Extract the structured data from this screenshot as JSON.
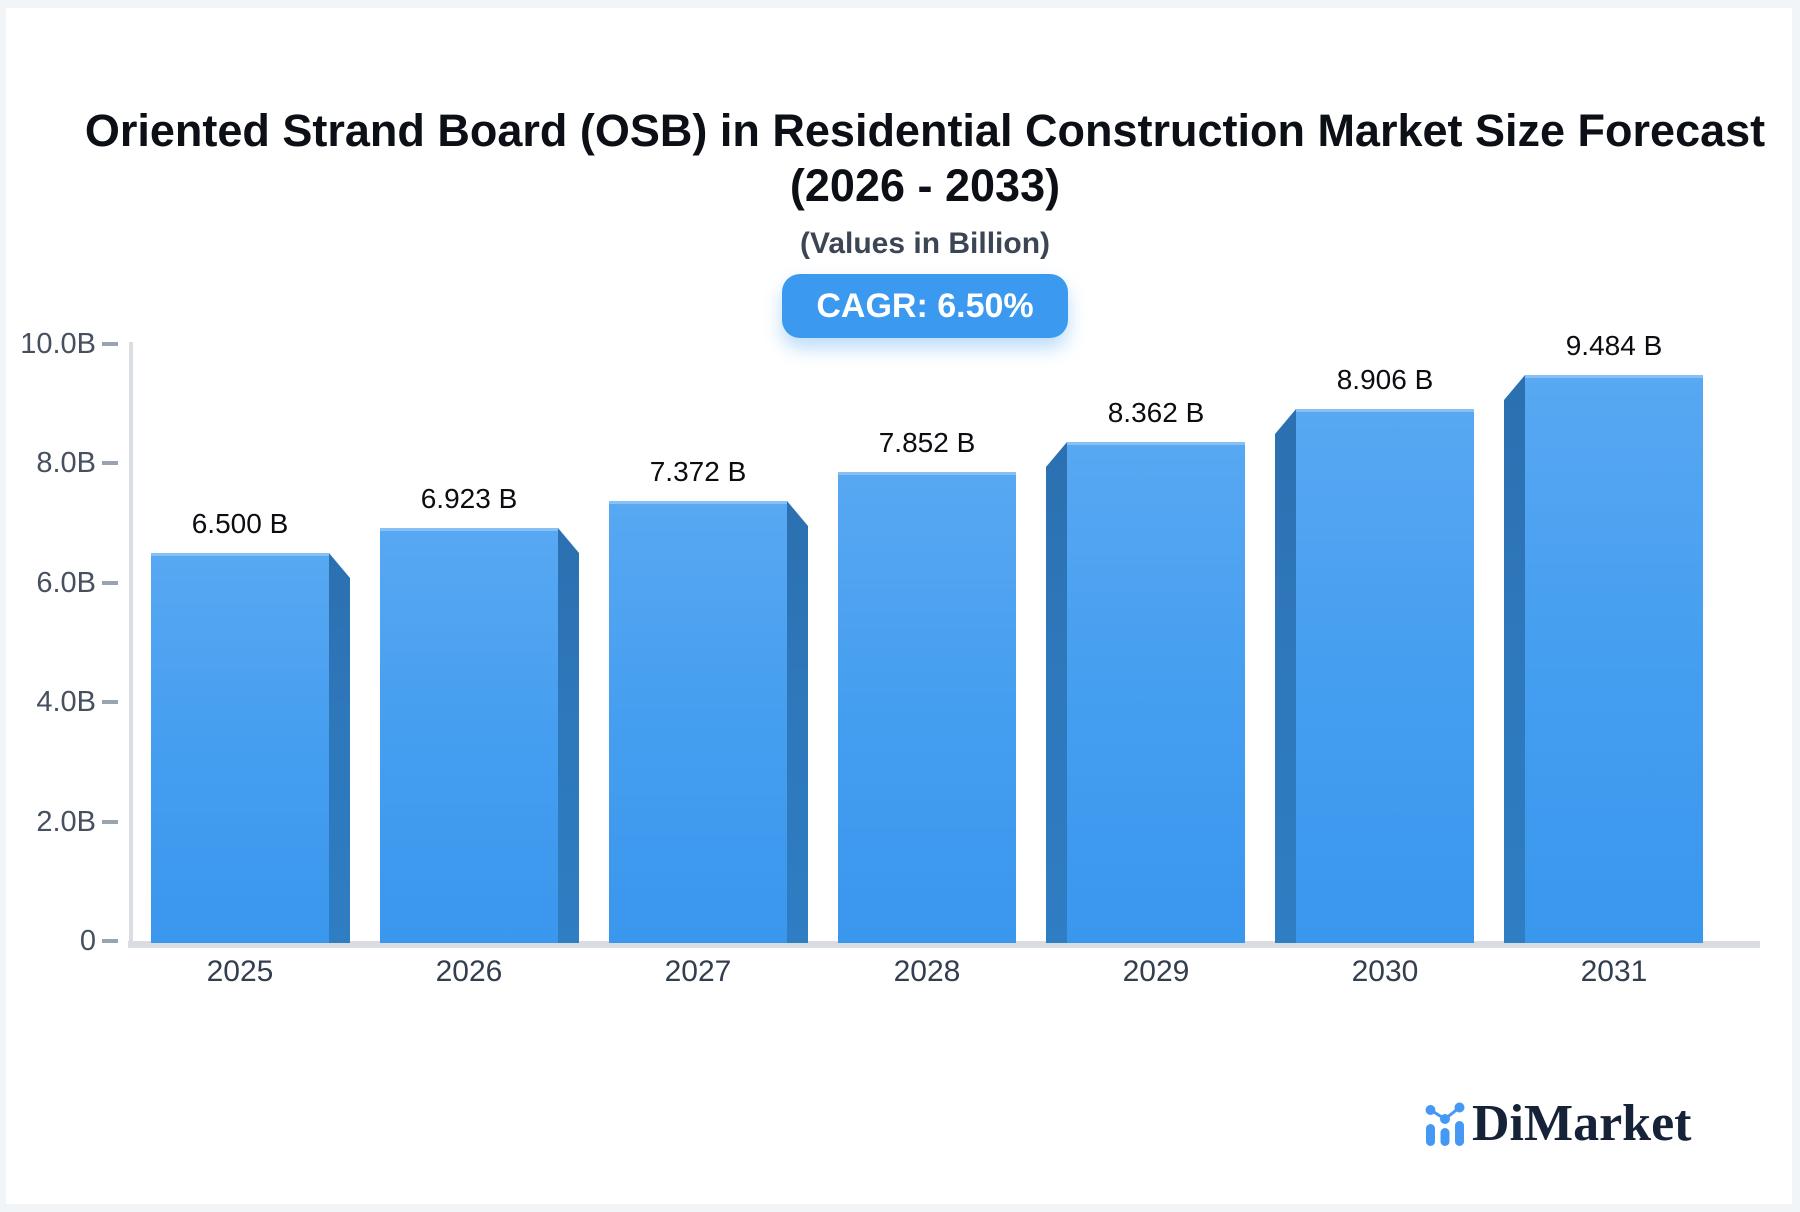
{
  "page": {
    "background_color": "#f2f5f7",
    "card_color": "#ffffff"
  },
  "header": {
    "title_line1": "Oriented Strand Board (OSB) in Residential Construction Market Size Forecast",
    "title_line2": "(2026 - 2033)",
    "subtitle": "(Values in Billion)",
    "cagr_badge_label": "CAGR: 6.50%",
    "badge_color": "#3b9af0"
  },
  "chart_data": {
    "type": "bar",
    "title": "Oriented Strand Board (OSB) in Residential Construction Market Size Forecast (2026 - 2033)",
    "subtitle": "(Values in Billion)",
    "categories": [
      "2025",
      "2026",
      "2027",
      "2028",
      "2029",
      "2030",
      "2031"
    ],
    "values": [
      6.5,
      6.923,
      7.372,
      7.852,
      8.362,
      8.906,
      9.484
    ],
    "value_labels": [
      "6.500 B",
      "6.923 B",
      "7.372 B",
      "7.852 B",
      "8.362 B",
      "8.906 B",
      "9.484 B"
    ],
    "unit": "Billion",
    "cagr": "6.50%",
    "xlabel": "",
    "ylabel": "",
    "ylim": [
      0,
      10
    ],
    "yticks": [
      {
        "value": 10,
        "label": "10.0B"
      },
      {
        "value": 8,
        "label": "8.0B"
      },
      {
        "value": 6,
        "label": "6.0B"
      },
      {
        "value": 4,
        "label": "4.0B"
      },
      {
        "value": 2,
        "label": "2.0B"
      },
      {
        "value": 0,
        "label": "0"
      }
    ],
    "grid": false,
    "legend": false,
    "bar_style": "3d-beveled",
    "bar_color_top": "#58a8f2",
    "bar_color_bottom": "#3a97ee",
    "bar_side_color": "#2e77ba",
    "axis_color": "#d9dce1",
    "tick_color": "#9aa4b0",
    "tick_label_color": "#46505f"
  },
  "logo": {
    "text": "DiMarket",
    "icon": "bar-chart-logo-icon",
    "text_color": "#152238",
    "icon_color": "#4598f4"
  }
}
